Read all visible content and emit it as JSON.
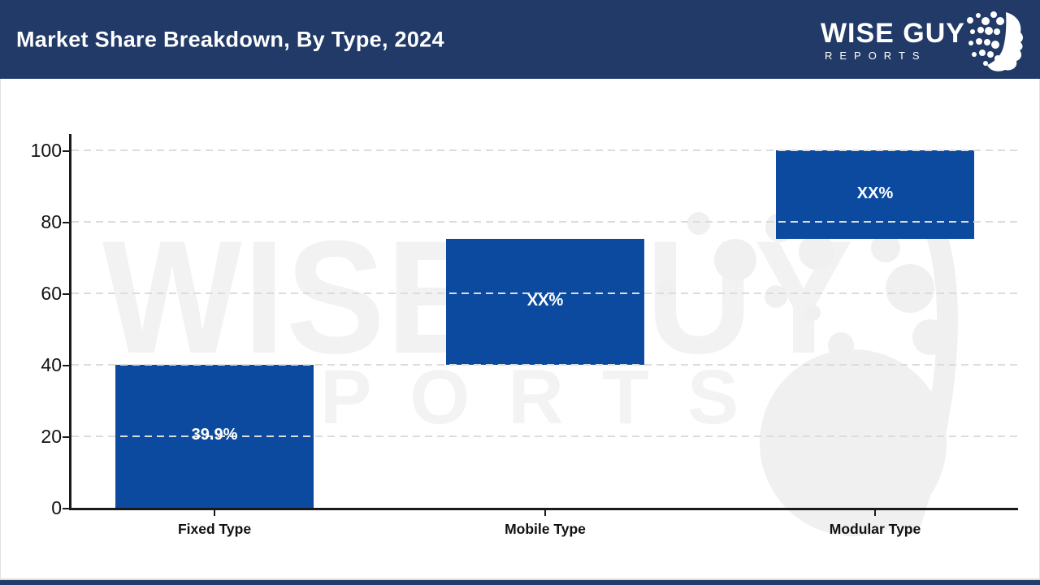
{
  "header": {
    "title": "Market Share Breakdown, By Type, 2024",
    "logo": {
      "line1": "WISE GUY",
      "line2": "REPORTS"
    }
  },
  "watermark": {
    "line1": "WISE GUY",
    "line2": "REPORTS"
  },
  "chart_data": {
    "type": "bar",
    "subtype": "floating-segment-waterfall",
    "title": "Market Share Breakdown, By Type, 2024",
    "categories": [
      "Fixed Type",
      "Mobile Type",
      "Modular Type"
    ],
    "segments": [
      {
        "category": "Fixed Type",
        "from": 0,
        "to": 39.9,
        "size": 39.9,
        "label": "39.9%"
      },
      {
        "category": "Mobile Type",
        "from": 39.9,
        "to": 75.2,
        "size": 35.3,
        "label": "XX%"
      },
      {
        "category": "Modular Type",
        "from": 75.2,
        "to": 100,
        "size": 24.8,
        "label": "XX%"
      }
    ],
    "yticks": [
      0,
      20,
      40,
      60,
      80,
      100
    ],
    "ylim": [
      0,
      104.5
    ],
    "xlabel": "",
    "ylabel": "",
    "grid": "horizontal-dashed",
    "grid_above_bars": true,
    "legend": "none"
  },
  "colors": {
    "header_bg": "#213A67",
    "footer_bg": "#213A67",
    "bar": "#0B4A9F",
    "axis": "#1A1A1A",
    "grid": "#DCDCDC",
    "value_label_text": "#FFFFFF",
    "tick_text": "#111111",
    "watermark_text": "#F2F2F2",
    "title_text": "#FFFFFF"
  }
}
